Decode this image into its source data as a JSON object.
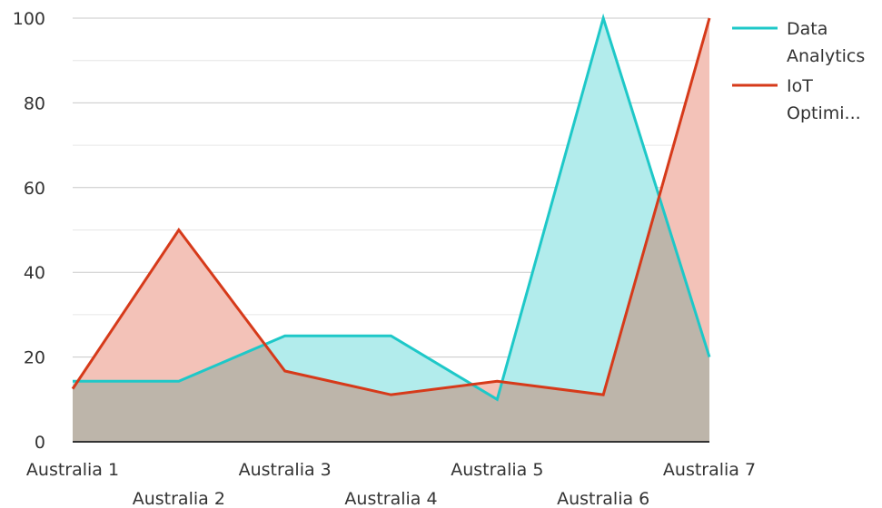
{
  "chart_data": {
    "type": "area",
    "categories": [
      "Australia 1",
      "Australia 2",
      "Australia 3",
      "Australia 4",
      "Australia 5",
      "Australia 6",
      "Australia 7"
    ],
    "series": [
      {
        "name": "Data Analytics",
        "legend_lines": [
          "Data",
          "Analytics"
        ],
        "values": [
          14.3,
          14.3,
          25,
          25,
          10,
          100,
          20
        ],
        "color": "#1ec8c8",
        "fill": "#b2ecec"
      },
      {
        "name": "IoT Optimi...",
        "legend_lines": [
          "IoT",
          "Optimi..."
        ],
        "values": [
          12.5,
          50,
          16.7,
          11.1,
          14.3,
          11.1,
          100
        ],
        "color": "#d63a1a",
        "fill": "#f3c2b8"
      }
    ],
    "overlap_fill": "#bdb5aa",
    "ylim": [
      0,
      100
    ],
    "yticks": [
      0,
      20,
      40,
      60,
      80,
      100
    ],
    "grid": true,
    "legend_position": "top-right",
    "title": "",
    "xlabel": "",
    "ylabel": ""
  }
}
